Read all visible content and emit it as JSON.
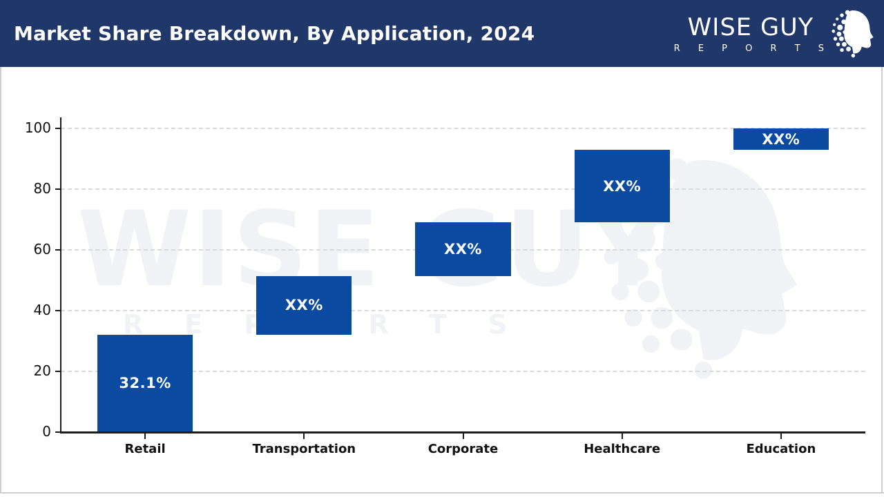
{
  "header": {
    "title": "Market Share Breakdown, By Application, 2024",
    "logo": {
      "line1": "WISE GUY",
      "line2": "REPORTS"
    }
  },
  "watermark": {
    "line1": "WISE GUY",
    "line2": "REPORTS"
  },
  "colors": {
    "header_bg": "#203769",
    "bar_fill": "#0b4aa1",
    "bar_label": "#ffffff",
    "axis": "#1c1c1c",
    "tick_label": "#111111",
    "gridline": "#d9dadc",
    "watermark": "#f1f2f5",
    "background": "#ffffff"
  },
  "chart_data": {
    "type": "bar",
    "subtype": "waterfall-floating-bars",
    "title": "Market Share Breakdown, By Application, 2024",
    "xlabel": "",
    "ylabel": "",
    "categories": [
      "Retail",
      "Transportation",
      "Corporate",
      "Healthcare",
      "Education"
    ],
    "segments": [
      {
        "category": "Retail",
        "start": 0,
        "end": 32.1,
        "label": "32.1%"
      },
      {
        "category": "Transportation",
        "start": 32.1,
        "end": 51.4,
        "label": "XX%"
      },
      {
        "category": "Corporate",
        "start": 51.4,
        "end": 69.0,
        "label": "XX%"
      },
      {
        "category": "Healthcare",
        "start": 69.0,
        "end": 92.9,
        "label": "XX%"
      },
      {
        "category": "Education",
        "start": 92.9,
        "end": 100.0,
        "label": "XX%"
      }
    ],
    "yticks": [
      0,
      20,
      40,
      60,
      80,
      100
    ],
    "ylim": [
      0,
      105
    ],
    "grid": "horizontal-dashed",
    "legend": "none"
  }
}
